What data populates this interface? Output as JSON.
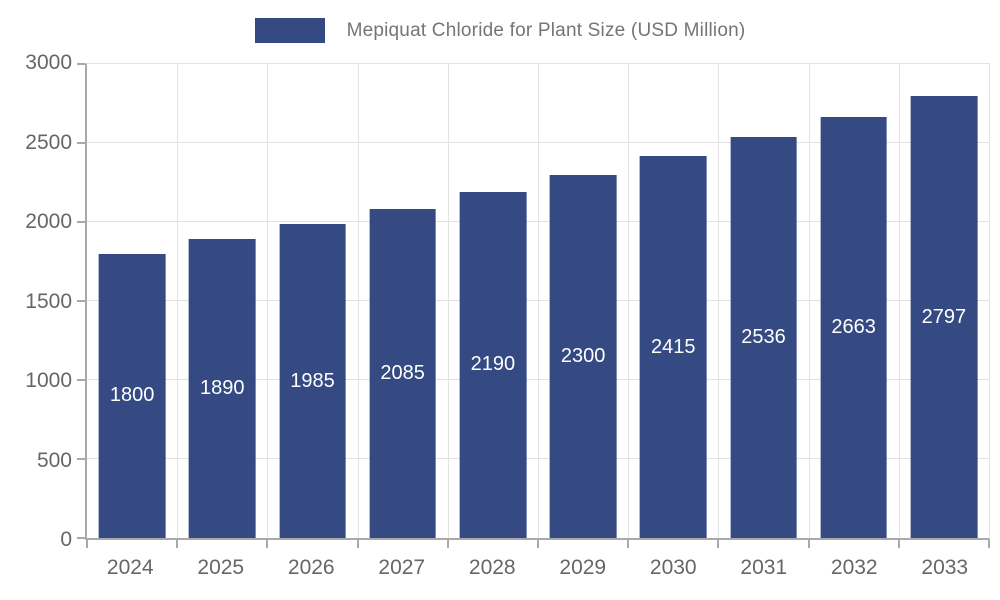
{
  "legend": {
    "label": "Mepiquat Chloride for Plant Size (USD Million)"
  },
  "chart_data": {
    "type": "bar",
    "title": "Mepiquat Chloride for Plant Size (USD Million)",
    "categories": [
      "2024",
      "2025",
      "2026",
      "2027",
      "2028",
      "2029",
      "2030",
      "2031",
      "2032",
      "2033"
    ],
    "values": [
      1800,
      1890,
      1985,
      2085,
      2190,
      2300,
      2415,
      2536,
      2663,
      2797
    ],
    "xlabel": "",
    "ylabel": "",
    "ylim": [
      0,
      3000
    ],
    "yticks": [
      0,
      500,
      1000,
      1500,
      2000,
      2500,
      3000
    ],
    "grid": true,
    "legend_position": "top",
    "bar_labels_visible": true,
    "colors": {
      "bar": "#354a83",
      "bar_label": "#ffffff",
      "axis_text": "#666666",
      "legend_text": "#757575",
      "gridline": "#e2e2e2",
      "axis_line": "#a9a9a9",
      "background": "#ffffff"
    }
  }
}
